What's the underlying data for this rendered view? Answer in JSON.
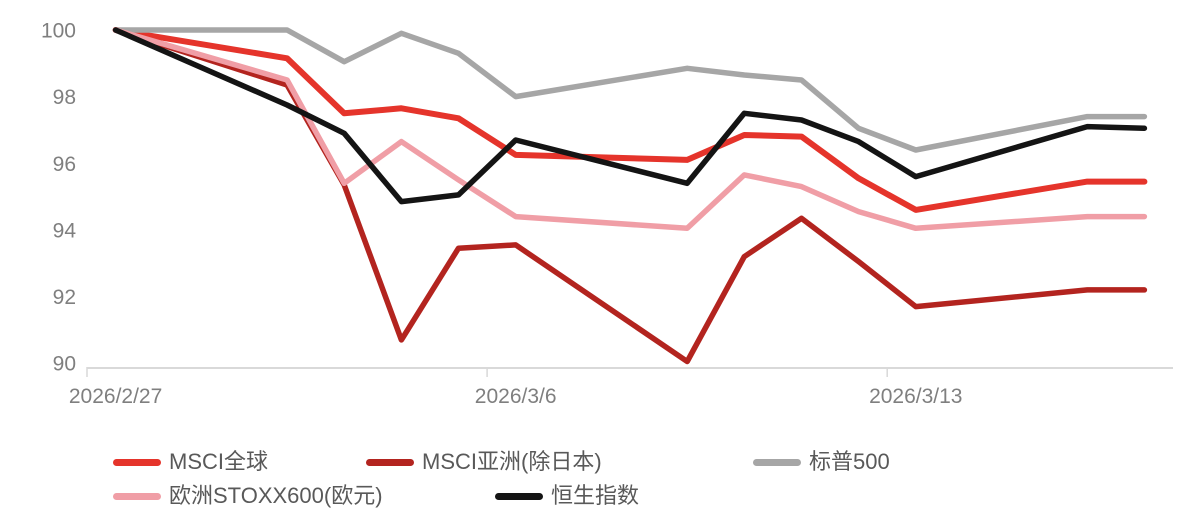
{
  "chart_data": {
    "type": "line",
    "title": "",
    "xlabel": "",
    "ylabel": "",
    "ylim": [
      90,
      100
    ],
    "y_ticks": [
      90,
      92,
      94,
      96,
      98,
      100
    ],
    "grid": false,
    "legend_position": "bottom",
    "x_dates": [
      "2026/2/27",
      "2026/2/28",
      "2026/3/1",
      "2026/3/2",
      "2026/3/3",
      "2026/3/4",
      "2026/3/5",
      "2026/3/6",
      "2026/3/7",
      "2026/3/8",
      "2026/3/9",
      "2026/3/10",
      "2026/3/11",
      "2026/3/12",
      "2026/3/13",
      "2026/3/14",
      "2026/3/15",
      "2026/3/16",
      "2026/3/17"
    ],
    "x_tick_labels": [
      {
        "label": "2026/2/27",
        "day": 0
      },
      {
        "label": "2026/3/6",
        "day": 7
      },
      {
        "label": "2026/3/13",
        "day": 14
      }
    ],
    "trading_day_indices": [
      0,
      3,
      4,
      5,
      6,
      7,
      10,
      11,
      12,
      13,
      14,
      17,
      18
    ],
    "trading_dates": [
      "2026/2/27",
      "2026/3/2",
      "2026/3/3",
      "2026/3/4",
      "2026/3/5",
      "2026/3/6",
      "2026/3/9",
      "2026/3/10",
      "2026/3/11",
      "2026/3/12",
      "2026/3/13",
      "2026/3/16",
      "2026/3/17"
    ],
    "series": [
      {
        "name": "MSCI全球",
        "color": "#e5342b",
        "width": 6,
        "values": [
          100,
          99.15,
          97.5,
          97.65,
          97.35,
          96.25,
          96.1,
          96.85,
          96.8,
          95.55,
          94.6,
          95.45,
          95.45
        ]
      },
      {
        "name": "MSCI亚洲(除日本)",
        "color": "#b3241f",
        "width": 5.5,
        "values": [
          100,
          98.35,
          95.35,
          90.7,
          93.45,
          93.55,
          90.05,
          93.2,
          94.35,
          93.05,
          91.7,
          92.2,
          92.2
        ]
      },
      {
        "name": "标普500",
        "color": "#a6a6a6",
        "width": 5.5,
        "values": [
          100,
          100,
          99.05,
          99.9,
          99.3,
          98.0,
          98.85,
          98.65,
          98.5,
          97.05,
          96.4,
          97.4,
          97.4
        ]
      },
      {
        "name": "欧洲STOXX600(欧元)",
        "color": "#f09ea6",
        "width": 5.5,
        "values": [
          100,
          98.5,
          95.4,
          96.65,
          95.5,
          94.4,
          94.05,
          95.65,
          95.3,
          94.55,
          94.05,
          94.4,
          94.4
        ]
      },
      {
        "name": "恒生指数",
        "color": "#141414",
        "width": 5.5,
        "values": [
          100,
          97.75,
          96.9,
          94.85,
          95.05,
          96.7,
          95.4,
          97.5,
          97.3,
          96.65,
          95.6,
          97.1,
          97.05
        ]
      }
    ]
  },
  "style": {
    "axis_line_color": "#d9d9d9",
    "tick_color": "#d9d9d9",
    "axis_label_color": "#7f7f7f",
    "legend_text_color": "#595959",
    "background": "#ffffff"
  }
}
